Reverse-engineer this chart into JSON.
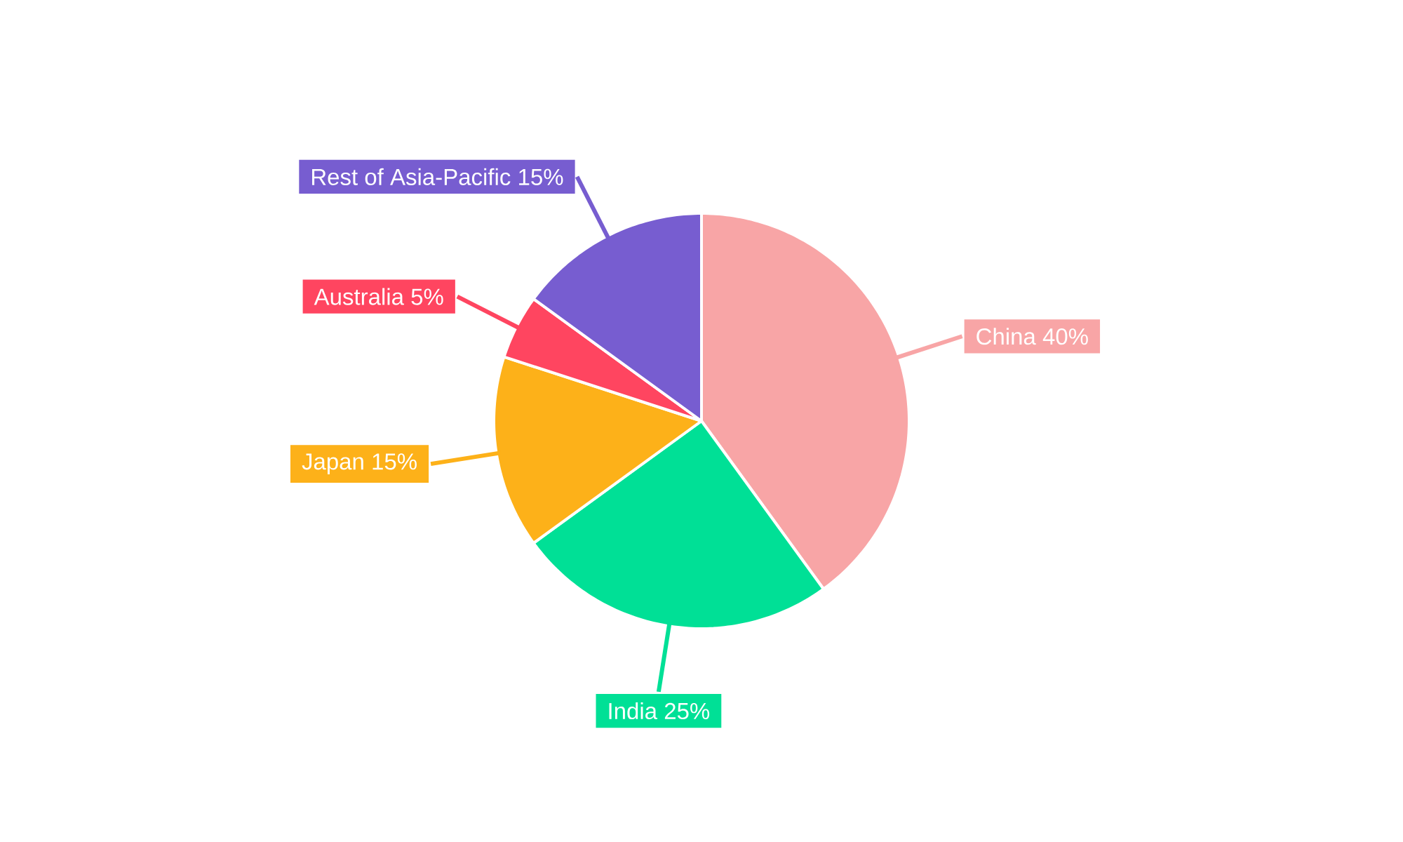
{
  "chart_data": {
    "type": "pie",
    "categories": [
      "China",
      "India",
      "Japan",
      "Australia",
      "Rest of Asia-Pacific"
    ],
    "values": [
      40,
      25,
      15,
      5,
      15
    ],
    "value_labels": [
      "40%",
      "25%",
      "15%",
      "5%",
      "15%"
    ],
    "colors": [
      "#f8a5a6",
      "#00e096",
      "#fdb119",
      "#ff4560",
      "#775dd0"
    ]
  }
}
